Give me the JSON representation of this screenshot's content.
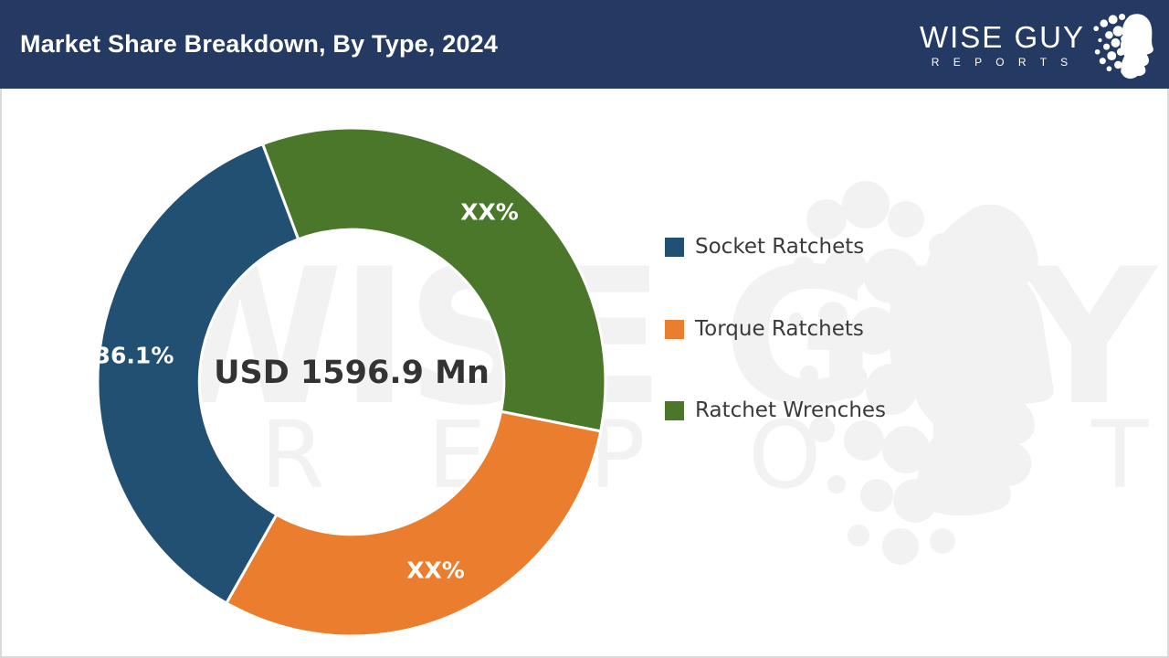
{
  "header": {
    "title": "Market Share Breakdown, By Type, 2024",
    "logo": {
      "line1": "WISE GUY",
      "line2": "R E P O R T S"
    }
  },
  "watermark": {
    "line1": "WISE GUY",
    "line2": "R E P O R T S"
  },
  "chart_data": {
    "type": "pie",
    "subtype": "donut",
    "title": "Market Share Breakdown, By Type, 2024",
    "center_label": "USD 1596.9 Mn",
    "total_value": {
      "amount": 1596.9,
      "unit": "USD Mn"
    },
    "start_angle_deg": -20.5,
    "donut_hole_ratio": 0.6,
    "segments": [
      {
        "name": "Ratchet Wrenches",
        "value_pct": 33.8,
        "display_label": "XX%",
        "color": "#4A7729"
      },
      {
        "name": "Torque Ratchets",
        "value_pct": 30.1,
        "display_label": "XX%",
        "color": "#EB7D2F"
      },
      {
        "name": "Socket Ratchets",
        "value_pct": 36.1,
        "display_label": "36.1%",
        "color": "#225073"
      }
    ],
    "legend": {
      "position": "right",
      "order": [
        "Socket Ratchets",
        "Torque Ratchets",
        "Ratchet Wrenches"
      ]
    }
  },
  "colors": {
    "header_bg": "#243A62",
    "frame_border": "#D9D9D9",
    "center_text": "#333333",
    "legend_text": "#3A3A3A",
    "watermark": "#F2F2F2"
  }
}
